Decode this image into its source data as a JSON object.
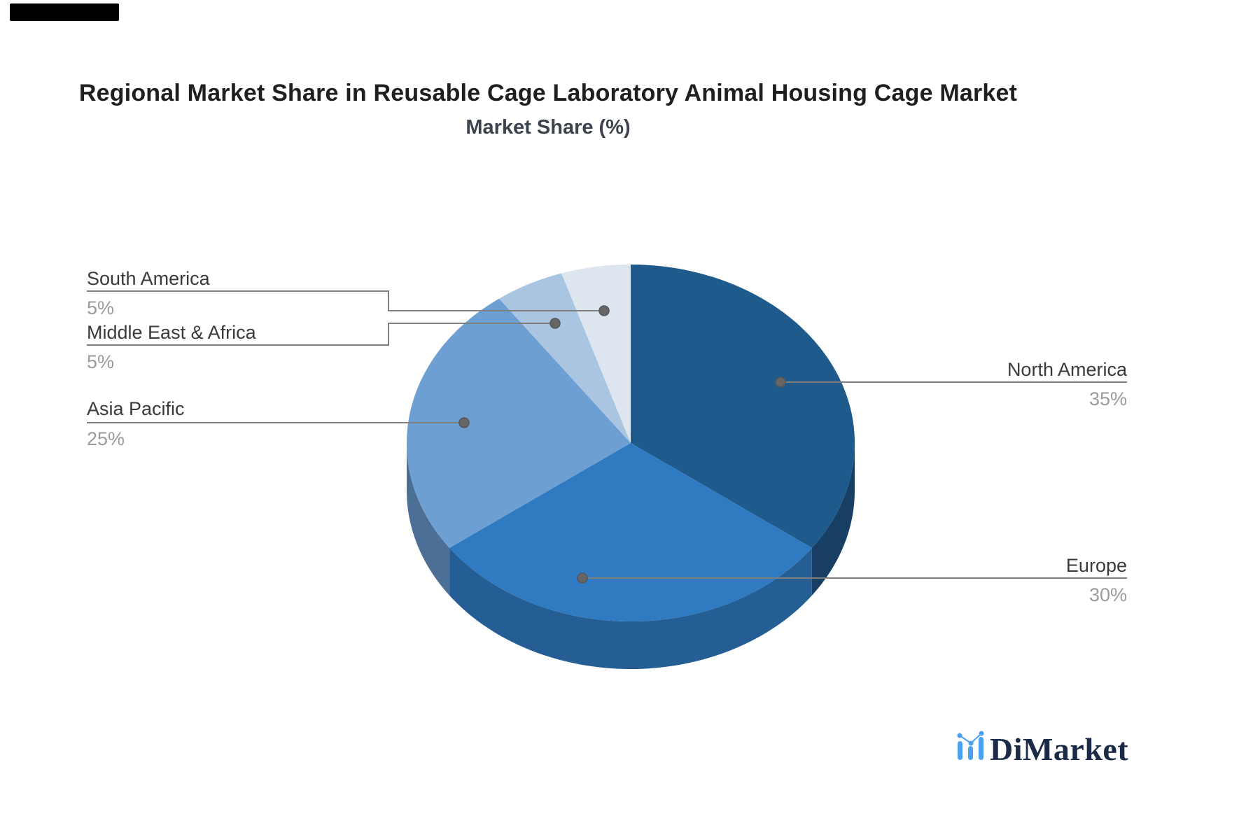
{
  "title": "Regional Market Share in Reusable Cage Laboratory Animal Housing Cage Market",
  "subtitle": "Market Share (%)",
  "chart_data": {
    "type": "pie",
    "title": "Regional Market Share in Reusable Cage Laboratory Animal Housing Cage Market",
    "subtitle": "Market Share (%)",
    "unit": "%",
    "style": "3d-pie",
    "direction": "clockwise",
    "start_angle_deg": 0,
    "legend_position": "none",
    "labels_position": "callouts",
    "slices": [
      {
        "name": "North America",
        "value": 35,
        "label": "35%",
        "color": "#1E5A8C",
        "side_color": "#173E63"
      },
      {
        "name": "Europe",
        "value": 30,
        "label": "30%",
        "color": "#2F7AC1",
        "side_color": "#245E95"
      },
      {
        "name": "Asia Pacific",
        "value": 25,
        "label": "25%",
        "color": "#6E9FD2",
        "side_color": "#4D6F96"
      },
      {
        "name": "Middle East & Africa",
        "value": 5,
        "label": "5%",
        "color": "#A9C5E2",
        "side_color": "#7F9BB8"
      },
      {
        "name": "South America",
        "value": 5,
        "label": "5%",
        "color": "#DDE5EE",
        "side_color": "#AFBDCD"
      }
    ],
    "connector_color": "#7F7F7F",
    "connector_dot_color": "#666666",
    "label_text_color": "#3A3A3A",
    "value_text_color": "#9B9B9B"
  },
  "logo": {
    "text": "DiMarket",
    "icon": "bar-line-chart-icon",
    "text_color": "#1B2A47",
    "accent_color": "#4DA0F0"
  }
}
